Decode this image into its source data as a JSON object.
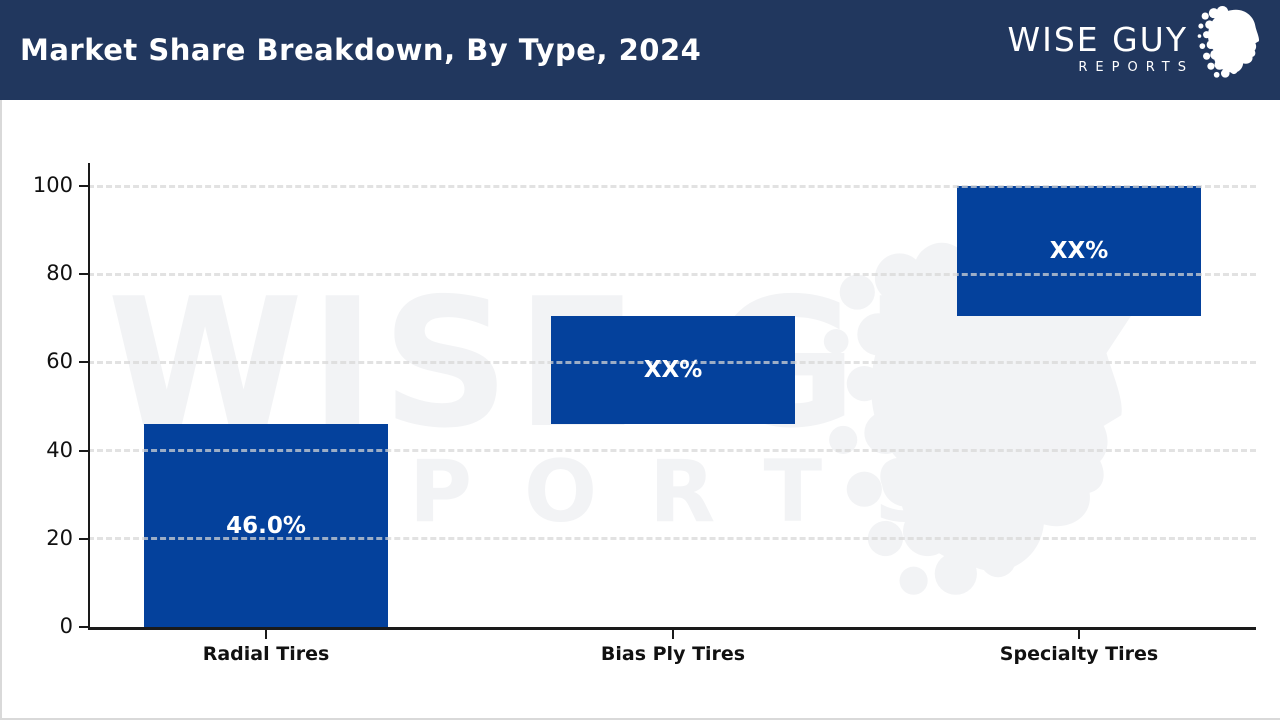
{
  "header": {
    "title": "Market Share Breakdown, By Type, 2024",
    "bg_color": "#21375e",
    "logo": {
      "line1": "WISE GUY",
      "line2": "REPORTS",
      "head_icon": "dotted-head-profile"
    }
  },
  "watermark": {
    "line1": "WISE GUY",
    "line2": "REPORTS",
    "head_icon": "dotted-head-profile"
  },
  "chart_data": {
    "type": "bar",
    "variant": "floating-waterfall",
    "title": "Market Share Breakdown, By Type, 2024",
    "categories": [
      "Radial Tires",
      "Bias Ply Tires",
      "Specialty Tires"
    ],
    "segments": [
      {
        "category": "Radial Tires",
        "start": 0,
        "end": 46,
        "label": "46.0%"
      },
      {
        "category": "Bias Ply Tires",
        "start": 46,
        "end": 70.5,
        "label": "XX%"
      },
      {
        "category": "Specialty Tires",
        "start": 70.5,
        "end": 100,
        "label": "XX%"
      }
    ],
    "xlabel": "",
    "ylabel": "",
    "yticks": [
      0,
      20,
      40,
      60,
      80,
      100
    ],
    "ylim": [
      0,
      105
    ],
    "grid": "horizontal-dashed",
    "legend": "none",
    "colors": {
      "bar": "#04419c",
      "bar_label": "#ffffff",
      "grid": "#d7d7d7",
      "axis": "#1a1a1a",
      "tick_label": "#111111",
      "header_bg": "#21375e",
      "watermark": "#f2f3f5"
    }
  }
}
